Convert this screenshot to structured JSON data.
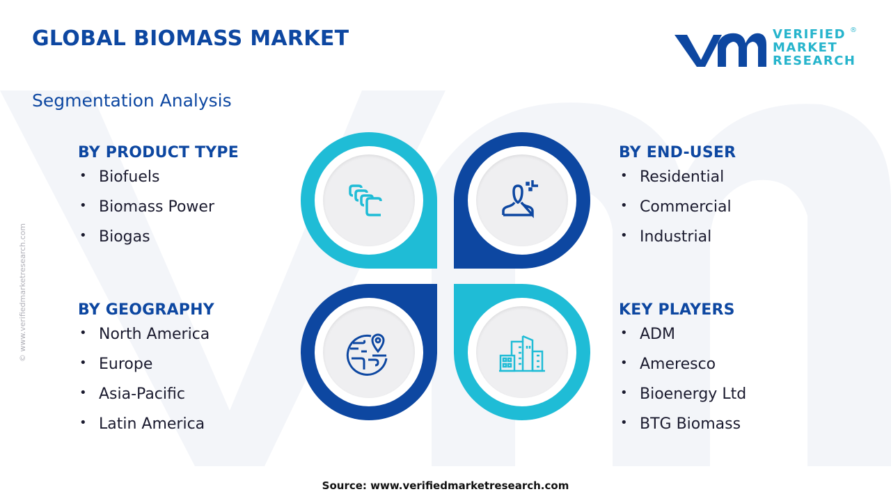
{
  "header": {
    "title": "GLOBAL BIOMASS MARKET",
    "subtitle": "Segmentation Analysis"
  },
  "logo": {
    "text_line1": "VERIFIED",
    "text_line2": "MARKET",
    "text_line3": "RESEARCH",
    "registered": "®"
  },
  "side_watermark": "© www.verifiedmarketresearch.com",
  "colors": {
    "navy": "#0d47a1",
    "cyan": "#1fbcd6"
  },
  "segments": [
    {
      "title": "BY PRODUCT TYPE",
      "icon": "layers-icon",
      "items": [
        "Biofuels",
        "Biomass Power",
        "Biogas"
      ]
    },
    {
      "title": "BY END-USER",
      "icon": "user-icon",
      "items": [
        "Residential",
        "Commercial",
        "Industrial"
      ]
    },
    {
      "title": "BY GEOGRAPHY",
      "icon": "globe-pin-icon",
      "items": [
        "North America",
        "Europe",
        "Asia-Pacific",
        "Latin America"
      ]
    },
    {
      "title": "KEY PLAYERS",
      "icon": "buildings-icon",
      "items": [
        "ADM",
        "Ameresco",
        "Bioenergy Ltd",
        "BTG Biomass"
      ]
    }
  ],
  "bullet": "•",
  "footer": {
    "source": "Source: www.verifiedmarketresearch.com"
  }
}
